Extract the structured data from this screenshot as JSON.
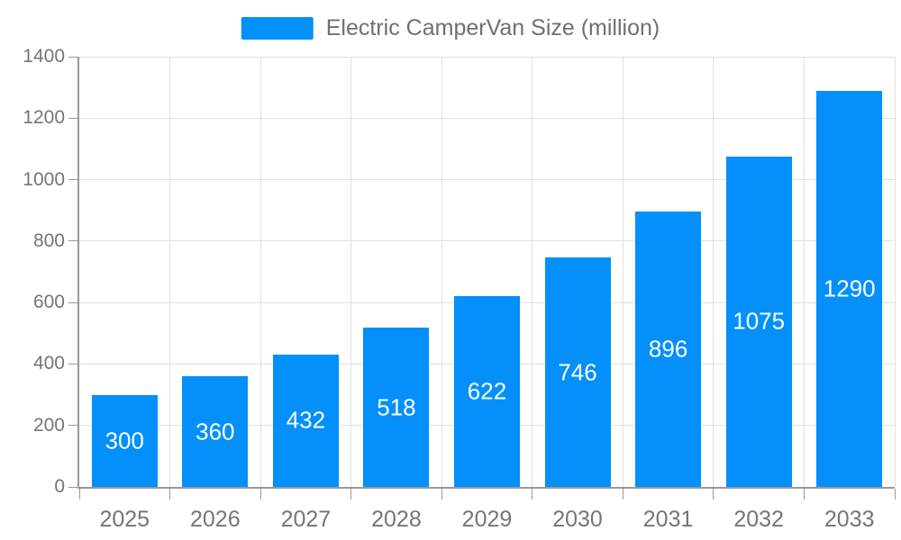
{
  "legend": {
    "label": "Electric CamperVan Size (million)"
  },
  "colors": {
    "bar": "#0390fa",
    "grid_line": "#e0e0e0",
    "axis_line": "#999999",
    "axis_label": "#757575",
    "legend_text": "#6b7078",
    "value_label": "#ffffff",
    "background": "#ffffff"
  },
  "chart_data": {
    "type": "bar",
    "title": "Electric CamperVan Size (million)",
    "categories": [
      "2025",
      "2026",
      "2027",
      "2028",
      "2029",
      "2030",
      "2031",
      "2032",
      "2033"
    ],
    "values": [
      300,
      360,
      432,
      518,
      622,
      746,
      896,
      1075,
      1290
    ],
    "series_name": "Electric CamperVan Size (million)",
    "xlabel": "",
    "ylabel": "",
    "ylim": [
      0,
      1400
    ],
    "yticks": [
      0,
      200,
      400,
      600,
      800,
      1000,
      1200,
      1400
    ],
    "grid": "horizontal and vertical",
    "legend_position": "top-center",
    "value_label_position": "inside-center"
  }
}
